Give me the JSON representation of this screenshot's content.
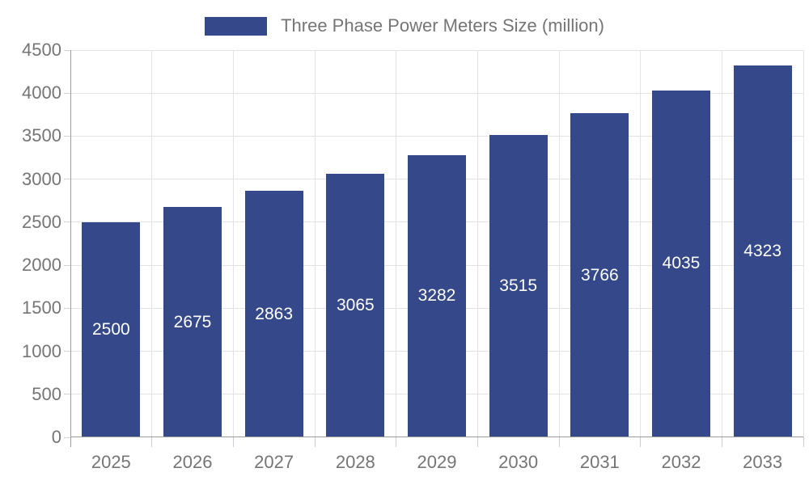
{
  "legend": {
    "label": "Three Phase Power Meters Size (million)"
  },
  "colors": {
    "bar": "#35498A",
    "value_label": "#FFFFFF",
    "axis_label": "#757575",
    "grid": "#E3E3E3",
    "axis_line": "#9B9B9B",
    "y_tick": "#D2D2D2",
    "x_tick": "#C9CCD8",
    "background": "#FFFFFF"
  },
  "chart_data": {
    "type": "bar",
    "title": "Three Phase Power Meters Size (million)",
    "categories": [
      "2025",
      "2026",
      "2027",
      "2028",
      "2029",
      "2030",
      "2031",
      "2032",
      "2033"
    ],
    "values": [
      2500,
      2675,
      2863,
      3065,
      3282,
      3515,
      3766,
      4035,
      4323
    ],
    "series_name": "Three Phase Power Meters Size (million)",
    "xlabel": "",
    "ylabel": "",
    "ylim": [
      0,
      4500
    ],
    "yticks": [
      0,
      500,
      1000,
      1500,
      2000,
      2500,
      3000,
      3500,
      4000,
      4500
    ],
    "grid": true,
    "legend_position": "top",
    "value_labels_position": "inside-center"
  }
}
